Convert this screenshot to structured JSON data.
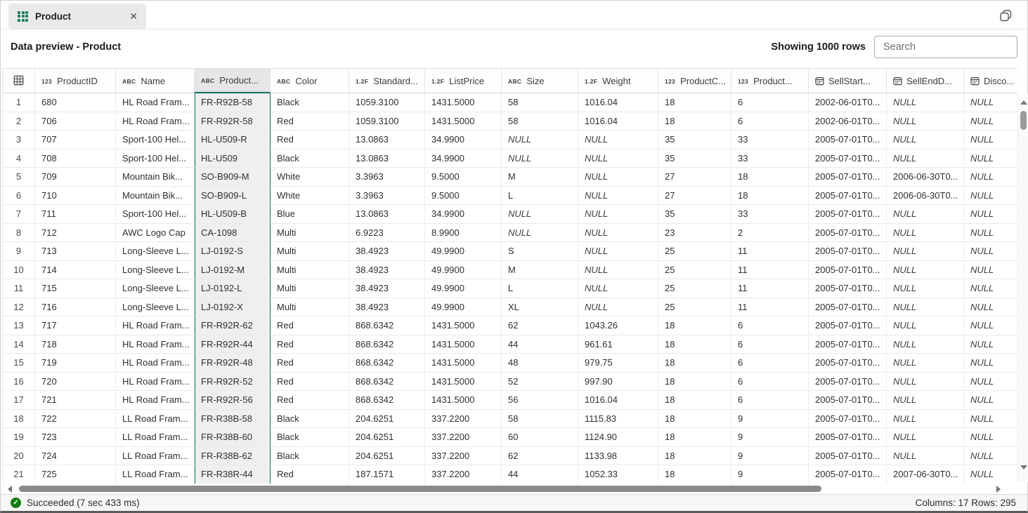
{
  "tab": {
    "label": "Product"
  },
  "preview": {
    "title": "Data preview - Product",
    "showing_label": "Showing 1000 rows",
    "search_placeholder": "Search"
  },
  "icons": {
    "tab_icon": "table-grid-icon",
    "tab_close": "close-icon",
    "top_right": "copy-icon",
    "select_all": "table-grid-outline-icon",
    "status": "check-circle-icon"
  },
  "colors": {
    "accent_teal": "#0F6E5F",
    "tab_icon_green": "#15805F",
    "status_green": "#107C10"
  },
  "grid": {
    "selected_column_index": 2,
    "columns": [
      {
        "label": "ProductID",
        "type_icon": "123"
      },
      {
        "label": "Name",
        "type_icon": "ABC"
      },
      {
        "label": "Product...",
        "type_icon": "ABC"
      },
      {
        "label": "Color",
        "type_icon": "ABC"
      },
      {
        "label": "Standard...",
        "type_icon": "1.2F"
      },
      {
        "label": "ListPrice",
        "type_icon": "1.2F"
      },
      {
        "label": "Size",
        "type_icon": "ABC"
      },
      {
        "label": "Weight",
        "type_icon": "1.2F"
      },
      {
        "label": "ProductC...",
        "type_icon": "123"
      },
      {
        "label": "Product...",
        "type_icon": "123"
      },
      {
        "label": "SellStart...",
        "type_icon": "calendar"
      },
      {
        "label": "SellEndD...",
        "type_icon": "calendar"
      },
      {
        "label": "Disco...",
        "type_icon": "calendar"
      }
    ],
    "rows": [
      [
        "1",
        "680",
        "HL Road Fram...",
        "FR-R92B-58",
        "Black",
        "1059.3100",
        "1431.5000",
        "58",
        "1016.04",
        "18",
        "6",
        "2002-06-01T0...",
        "NULL",
        "NULL"
      ],
      [
        "2",
        "706",
        "HL Road Fram...",
        "FR-R92R-58",
        "Red",
        "1059.3100",
        "1431.5000",
        "58",
        "1016.04",
        "18",
        "6",
        "2002-06-01T0...",
        "NULL",
        "NULL"
      ],
      [
        "3",
        "707",
        "Sport-100 Hel...",
        "HL-U509-R",
        "Red",
        "13.0863",
        "34.9900",
        "NULL",
        "NULL",
        "35",
        "33",
        "2005-07-01T0...",
        "NULL",
        "NULL"
      ],
      [
        "4",
        "708",
        "Sport-100 Hel...",
        "HL-U509",
        "Black",
        "13.0863",
        "34.9900",
        "NULL",
        "NULL",
        "35",
        "33",
        "2005-07-01T0...",
        "NULL",
        "NULL"
      ],
      [
        "5",
        "709",
        "Mountain Bik...",
        "SO-B909-M",
        "White",
        "3.3963",
        "9.5000",
        "M",
        "NULL",
        "27",
        "18",
        "2005-07-01T0...",
        "2006-06-30T0...",
        "NULL"
      ],
      [
        "6",
        "710",
        "Mountain Bik...",
        "SO-B909-L",
        "White",
        "3.3963",
        "9.5000",
        "L",
        "NULL",
        "27",
        "18",
        "2005-07-01T0...",
        "2006-06-30T0...",
        "NULL"
      ],
      [
        "7",
        "711",
        "Sport-100 Hel...",
        "HL-U509-B",
        "Blue",
        "13.0863",
        "34.9900",
        "NULL",
        "NULL",
        "35",
        "33",
        "2005-07-01T0...",
        "NULL",
        "NULL"
      ],
      [
        "8",
        "712",
        "AWC Logo Cap",
        "CA-1098",
        "Multi",
        "6.9223",
        "8.9900",
        "NULL",
        "NULL",
        "23",
        "2",
        "2005-07-01T0...",
        "NULL",
        "NULL"
      ],
      [
        "9",
        "713",
        "Long-Sleeve L...",
        "LJ-0192-S",
        "Multi",
        "38.4923",
        "49.9900",
        "S",
        "NULL",
        "25",
        "11",
        "2005-07-01T0...",
        "NULL",
        "NULL"
      ],
      [
        "10",
        "714",
        "Long-Sleeve L...",
        "LJ-0192-M",
        "Multi",
        "38.4923",
        "49.9900",
        "M",
        "NULL",
        "25",
        "11",
        "2005-07-01T0...",
        "NULL",
        "NULL"
      ],
      [
        "11",
        "715",
        "Long-Sleeve L...",
        "LJ-0192-L",
        "Multi",
        "38.4923",
        "49.9900",
        "L",
        "NULL",
        "25",
        "11",
        "2005-07-01T0...",
        "NULL",
        "NULL"
      ],
      [
        "12",
        "716",
        "Long-Sleeve L...",
        "LJ-0192-X",
        "Multi",
        "38.4923",
        "49.9900",
        "XL",
        "NULL",
        "25",
        "11",
        "2005-07-01T0...",
        "NULL",
        "NULL"
      ],
      [
        "13",
        "717",
        "HL Road Fram...",
        "FR-R92R-62",
        "Red",
        "868.6342",
        "1431.5000",
        "62",
        "1043.26",
        "18",
        "6",
        "2005-07-01T0...",
        "NULL",
        "NULL"
      ],
      [
        "14",
        "718",
        "HL Road Fram...",
        "FR-R92R-44",
        "Red",
        "868.6342",
        "1431.5000",
        "44",
        "961.61",
        "18",
        "6",
        "2005-07-01T0...",
        "NULL",
        "NULL"
      ],
      [
        "15",
        "719",
        "HL Road Fram...",
        "FR-R92R-48",
        "Red",
        "868.6342",
        "1431.5000",
        "48",
        "979.75",
        "18",
        "6",
        "2005-07-01T0...",
        "NULL",
        "NULL"
      ],
      [
        "16",
        "720",
        "HL Road Fram...",
        "FR-R92R-52",
        "Red",
        "868.6342",
        "1431.5000",
        "52",
        "997.90",
        "18",
        "6",
        "2005-07-01T0...",
        "NULL",
        "NULL"
      ],
      [
        "17",
        "721",
        "HL Road Fram...",
        "FR-R92R-56",
        "Red",
        "868.6342",
        "1431.5000",
        "56",
        "1016.04",
        "18",
        "6",
        "2005-07-01T0...",
        "NULL",
        "NULL"
      ],
      [
        "18",
        "722",
        "LL Road Fram...",
        "FR-R38B-58",
        "Black",
        "204.6251",
        "337.2200",
        "58",
        "1115.83",
        "18",
        "9",
        "2005-07-01T0...",
        "NULL",
        "NULL"
      ],
      [
        "19",
        "723",
        "LL Road Fram...",
        "FR-R38B-60",
        "Black",
        "204.6251",
        "337.2200",
        "60",
        "1124.90",
        "18",
        "9",
        "2005-07-01T0...",
        "NULL",
        "NULL"
      ],
      [
        "20",
        "724",
        "LL Road Fram...",
        "FR-R38B-62",
        "Black",
        "204.6251",
        "337.2200",
        "62",
        "1133.98",
        "18",
        "9",
        "2005-07-01T0...",
        "NULL",
        "NULL"
      ],
      [
        "21",
        "725",
        "LL Road Fram...",
        "FR-R38R-44",
        "Red",
        "187.1571",
        "337.2200",
        "44",
        "1052.33",
        "18",
        "9",
        "2005-07-01T0...",
        "2007-06-30T0...",
        "NULL"
      ]
    ]
  },
  "status": {
    "message": "Succeeded (7 sec 433 ms)",
    "summary": "Columns: 17 Rows: 295"
  }
}
